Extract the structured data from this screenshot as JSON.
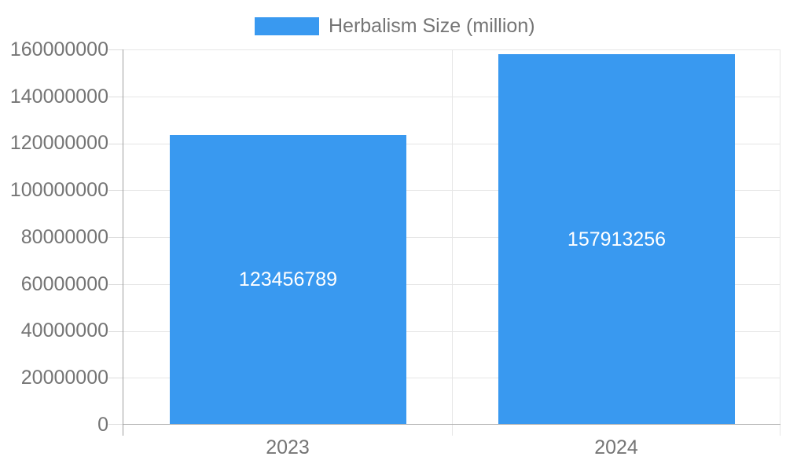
{
  "chart_data": {
    "type": "bar",
    "title": "",
    "legend": {
      "label": "Herbalism Size (million)",
      "position": "top"
    },
    "categories": [
      "2023",
      "2024"
    ],
    "series": [
      {
        "name": "Herbalism Size (million)",
        "values": [
          123456789,
          157913256
        ]
      }
    ],
    "values": [
      123456789,
      157913256
    ],
    "ylim": [
      0,
      160000000
    ],
    "ytick_step": 20000000,
    "ytick_labels": [
      "160000000",
      "140000000",
      "120000000",
      "100000000",
      "80000000",
      "60000000",
      "40000000",
      "20000000",
      "0"
    ],
    "grid": true,
    "colors": {
      "bar": "#3999F0",
      "grid": "#E6E6E6",
      "axis": "#9E9E9E",
      "text": "#757575",
      "value_text": "#FFFFFF"
    }
  }
}
